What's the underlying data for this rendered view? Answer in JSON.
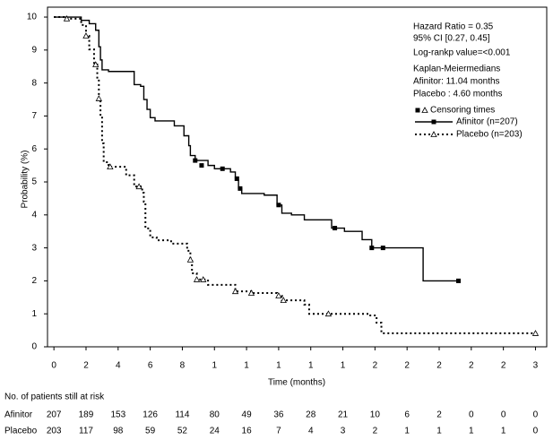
{
  "chart_data": {
    "type": "line",
    "step": true,
    "xlabel": "Time (months)",
    "ylabel": "Probability (%)",
    "xlim": [
      -0.4,
      30.7
    ],
    "ylim": [
      0,
      10.3
    ],
    "xticks": [
      0,
      2,
      4,
      6,
      8,
      {
        "value": 10,
        "label": "1"
      },
      {
        "value": 12,
        "label": "1"
      },
      {
        "value": 14,
        "label": "1"
      },
      {
        "value": 16,
        "label": "1"
      },
      {
        "value": 18,
        "label": "1"
      },
      {
        "value": 20,
        "label": "2"
      },
      {
        "value": 22,
        "label": "2"
      },
      {
        "value": 24,
        "label": "2"
      },
      {
        "value": 26,
        "label": "2"
      },
      {
        "value": 28,
        "label": "2"
      },
      {
        "value": 30,
        "label": "3"
      }
    ],
    "yticks": [
      0,
      1,
      2,
      3,
      4,
      5,
      6,
      7,
      8,
      9,
      10
    ],
    "annotations": [
      "Hazard Ratio = 0.35",
      "95% CI [0.27, 0.45]",
      "Log-rankp value=<0.001",
      "Kaplan-Meiermedians",
      "Afinitor: 11.04 months",
      "Placebo :  4.60 months"
    ],
    "censor_legend": "Censoring times",
    "series": [
      {
        "name": "Afinitor (n=207)",
        "color": "#000000",
        "dash": "solid",
        "marker": "square",
        "x": [
          0,
          1.7,
          2.2,
          2.6,
          2.8,
          2.9,
          3.0,
          3.4,
          5.0,
          5.4,
          5.6,
          5.8,
          6.0,
          6.3,
          7.5,
          8.1,
          8.4,
          8.5,
          8.8,
          9.6,
          10.0,
          11.0,
          11.3,
          11.5,
          11.7,
          12.5,
          13.1,
          13.9,
          14.2,
          14.8,
          15.6,
          17.3,
          18.1,
          19.2,
          19.8,
          22.9,
          23.0,
          25.2
        ],
        "values": [
          10,
          9.9,
          9.8,
          9.6,
          9.1,
          8.7,
          8.4,
          8.35,
          7.95,
          7.9,
          7.5,
          7.2,
          6.95,
          6.85,
          6.7,
          6.4,
          6.1,
          5.8,
          5.65,
          5.5,
          5.4,
          5.3,
          5.05,
          4.8,
          4.65,
          4.65,
          4.6,
          4.3,
          4.05,
          4.0,
          3.85,
          3.6,
          3.5,
          3.25,
          3.0,
          3.0,
          2.0,
          2.0
        ],
        "censor_x": [
          8.8,
          9.2,
          10.5,
          11.4,
          11.6,
          14.0,
          17.5,
          19.8,
          20.5,
          25.2
        ],
        "censor_values": [
          5.65,
          5.5,
          5.4,
          5.1,
          4.8,
          4.3,
          3.6,
          3.0,
          3.0,
          2.0
        ],
        "at_risk": [
          207,
          189,
          153,
          126,
          114,
          80,
          49,
          36,
          28,
          21,
          10,
          6,
          2,
          0,
          0,
          0
        ]
      },
      {
        "name": "Placebo (n=203)",
        "color": "#000000",
        "dash": "dotted",
        "marker": "triangle",
        "x": [
          0,
          0.8,
          1.7,
          2.0,
          2.2,
          2.5,
          2.7,
          2.8,
          2.9,
          3.0,
          3.1,
          3.4,
          4.5,
          5.0,
          5.5,
          5.6,
          5.7,
          6.0,
          6.4,
          7.3,
          8.3,
          8.5,
          8.6,
          8.9,
          9.6,
          11.3,
          12.3,
          13.9,
          14.2,
          15.6,
          15.9,
          19.6,
          20.1,
          20.4,
          30.1
        ],
        "values": [
          10,
          9.95,
          9.76,
          9.43,
          9.02,
          8.56,
          8.13,
          7.53,
          6.98,
          6.17,
          5.6,
          5.46,
          5.2,
          4.86,
          4.67,
          4.4,
          3.59,
          3.32,
          3.23,
          3.13,
          2.91,
          2.64,
          2.23,
          2.04,
          1.88,
          1.68,
          1.63,
          1.55,
          1.41,
          1.28,
          1.0,
          0.95,
          0.73,
          0.41,
          0.41
        ],
        "censor_x": [
          0.8,
          2.0,
          2.6,
          2.8,
          3.5,
          5.3,
          8.5,
          8.9,
          9.3,
          11.3,
          12.3,
          14.0,
          14.3,
          17.1,
          30.0
        ],
        "censor_values": [
          9.95,
          9.43,
          8.56,
          7.53,
          5.46,
          4.86,
          2.64,
          2.04,
          2.04,
          1.68,
          1.63,
          1.55,
          1.41,
          1.0,
          0.41
        ],
        "at_risk": [
          203,
          117,
          98,
          59,
          52,
          24,
          16,
          7,
          4,
          3,
          2,
          1,
          1,
          1,
          1,
          0
        ]
      }
    ],
    "risk_table": {
      "title": "No. of patients still at risk",
      "rows": [
        "Afinitor",
        "Placebo"
      ]
    }
  }
}
